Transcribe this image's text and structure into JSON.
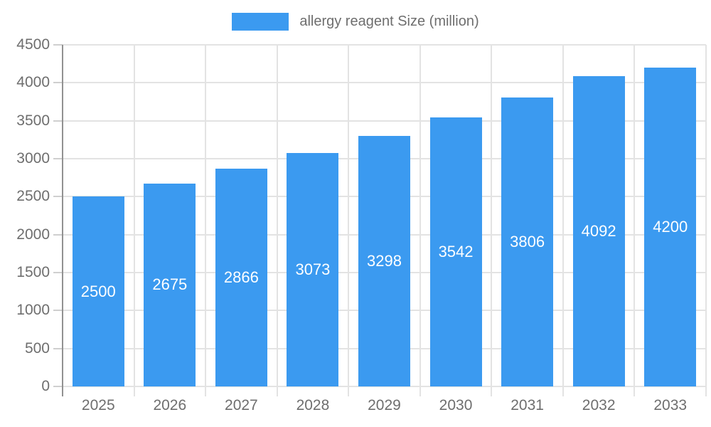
{
  "legend": {
    "label": "allergy reagent Size (million)"
  },
  "colors": {
    "bar": "#3b9af0",
    "grid": "#e3e3e3",
    "axis_line": "#919191",
    "tick": "#cfcfcf",
    "text": "#6e6e6e",
    "bar_label": "#ffffff",
    "background": "#ffffff"
  },
  "chart_data": {
    "type": "bar",
    "title": "allergy reagent Size (million)",
    "categories": [
      "2025",
      "2026",
      "2027",
      "2028",
      "2029",
      "2030",
      "2031",
      "2032",
      "2033"
    ],
    "values": [
      2500,
      2675,
      2866,
      3073,
      3298,
      3542,
      3806,
      4092,
      4200
    ],
    "xlabel": "",
    "ylabel": "",
    "ylim": [
      0,
      4500
    ],
    "y_ticks": [
      0,
      500,
      1000,
      1500,
      2000,
      2500,
      3000,
      3500,
      4000,
      4500
    ],
    "grid": true,
    "legend_position": "top-center",
    "bar_labels": "inside-centered-white"
  }
}
